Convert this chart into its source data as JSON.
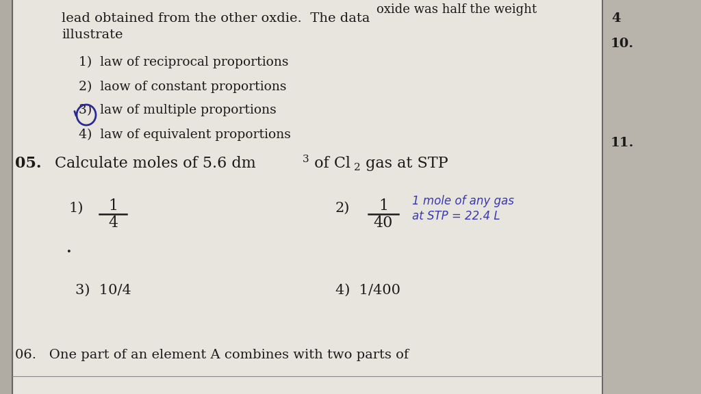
{
  "bg_color": "#ccc8c0",
  "page_color": "#e8e5de",
  "font_color": "#1a1a1a",
  "handwritten_color": "#3a3ab0",
  "circle_color": "#2a2a90",
  "line1": "lead obtained from the other oxdie.  The data",
  "line2": "illustrate",
  "top_right_text": "oxide was half the weight",
  "side_right_num_4": "4",
  "options": [
    "1)  law of reciprocal proportions",
    "2)  laow of constant proportions",
    "3)  law of multiple proportions",
    "4)  law of equivalent proportions"
  ],
  "q05_label": "05.",
  "q05_main": "Calculate moles of 5.6 dm",
  "q05_sup": "3",
  "q05_mid": " of Cl",
  "q05_sub": "2",
  "q05_end": " gas at STP",
  "ans1_label": "1)",
  "ans1_num": "1",
  "ans1_den": "4",
  "ans2_label": "2)",
  "ans2_num": "1",
  "ans2_den": "40",
  "hw_line1": "1 mole of any gas",
  "hw_line2": "at STP = 22.4 L",
  "ans3": "3)  10/4",
  "ans4": "4)  1/400",
  "side10": "10.",
  "side11": "11.",
  "bottom": "06.   One part of an element A combines with two parts of",
  "figsize": [
    10.24,
    5.76
  ],
  "dpi": 100
}
